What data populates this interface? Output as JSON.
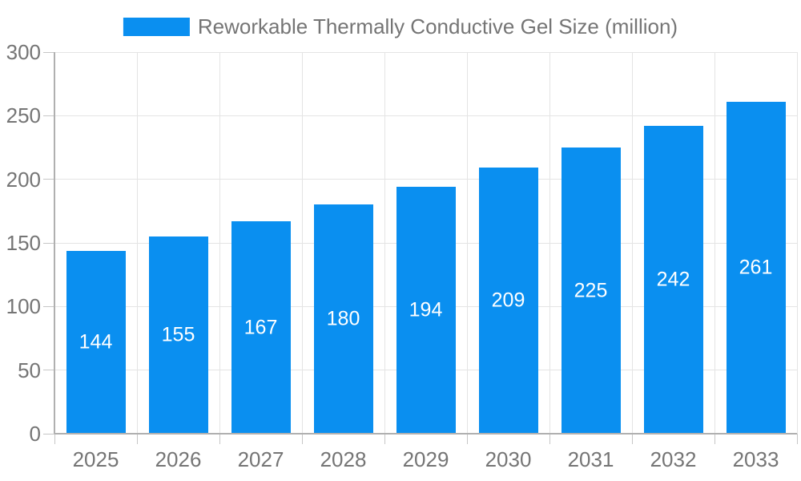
{
  "legend": {
    "label": "Reworkable Thermally Conductive Gel Size (million)"
  },
  "chart_data": {
    "type": "bar",
    "title": "Reworkable Thermally Conductive Gel Size (million)",
    "categories": [
      "2025",
      "2026",
      "2027",
      "2028",
      "2029",
      "2030",
      "2031",
      "2032",
      "2033"
    ],
    "values": [
      144,
      155,
      167,
      180,
      194,
      209,
      225,
      242,
      261
    ],
    "series_name": "Reworkable Thermally Conductive Gel Size (million)",
    "xlabel": "",
    "ylabel": "",
    "ylim": [
      0,
      300
    ],
    "yticks": [
      0,
      50,
      100,
      150,
      200,
      250,
      300
    ],
    "grid": true,
    "legend_position": "top",
    "bar_color": "#0a8ff0",
    "bar_label_color": "#ffffff",
    "axis_text_color": "#757575",
    "axis_line_color": "#b0b0b0",
    "gridline_color": "#e4e4e4",
    "background_color": "#ffffff"
  }
}
